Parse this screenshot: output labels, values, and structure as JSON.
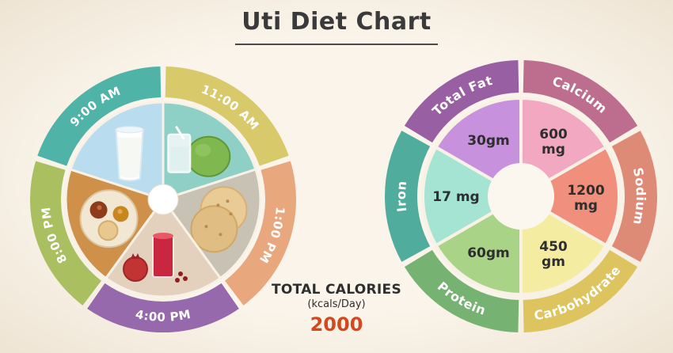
{
  "page": {
    "title": "Uti Diet Chart",
    "background": "#f8f1e6"
  },
  "total_calories": {
    "label": "TOTAL CALORIES",
    "sublabel": "(kcals/Day)",
    "value": "2000",
    "value_color": "#d2491e"
  },
  "chart_data": [
    {
      "type": "pie",
      "name": "meal-times-wheel",
      "title": "Daily meal timing wheel with food photos",
      "segment_angle_deg": 72,
      "categories": [
        "11:00 AM",
        "1:00 PM",
        "4:00 PM",
        "8:00 PM",
        "9:00 AM"
      ],
      "segments": [
        {
          "label": "11:00 AM",
          "start": 0,
          "color": "#d8ca6b",
          "food": "coconut-water",
          "photo_bg": "#8fd0c6"
        },
        {
          "label": "1:00 PM",
          "start": 72,
          "color": "#e8a77d",
          "food": "chapati",
          "photo_bg": "#c8c2b4"
        },
        {
          "label": "4:00 PM",
          "start": 144,
          "color": "#9668ac",
          "food": "pomegranate-juice",
          "photo_bg": "#e3d0bd"
        },
        {
          "label": "8:00 PM",
          "start": 216,
          "color": "#a9bf60",
          "food": "thali-curry",
          "photo_bg": "#cf9049"
        },
        {
          "label": "9:00 AM",
          "start": 288,
          "color": "#4fb3a8",
          "food": "milk-glass",
          "photo_bg": "#b9ddef"
        }
      ]
    },
    {
      "type": "donut",
      "name": "nutrient-wheel",
      "title": "Daily nutrient amounts",
      "segment_angle_deg": 60,
      "categories": [
        "Calcium",
        "Sodium",
        "Carbohydrate",
        "Protein",
        "Iron",
        "Total Fat"
      ],
      "segments": [
        {
          "label": "Calcium",
          "value": "600 mg",
          "value_lines": [
            "600",
            "mg"
          ],
          "outer_color": "#bd6e8e",
          "inner_color": "#f2a8c0"
        },
        {
          "label": "Sodium",
          "value": "1200 mg",
          "value_lines": [
            "1200",
            "mg"
          ],
          "outer_color": "#dd8a77",
          "inner_color": "#ef8f7c"
        },
        {
          "label": "Carbohydrate",
          "value": "450 gm",
          "value_lines": [
            "450",
            "gm"
          ],
          "outer_color": "#ddc45f",
          "inner_color": "#f4eda1"
        },
        {
          "label": "Protein",
          "value": "60gm",
          "value_lines": [
            "60gm"
          ],
          "outer_color": "#76b271",
          "inner_color": "#a9d387"
        },
        {
          "label": "Iron",
          "value": "17 mg",
          "value_lines": [
            "17 mg"
          ],
          "outer_color": "#50ad9e",
          "inner_color": "#a5e3d3"
        },
        {
          "label": "Total Fat",
          "value": "30gm",
          "value_lines": [
            "30gm"
          ],
          "outer_color": "#995fa3",
          "inner_color": "#c791dd"
        }
      ]
    }
  ]
}
